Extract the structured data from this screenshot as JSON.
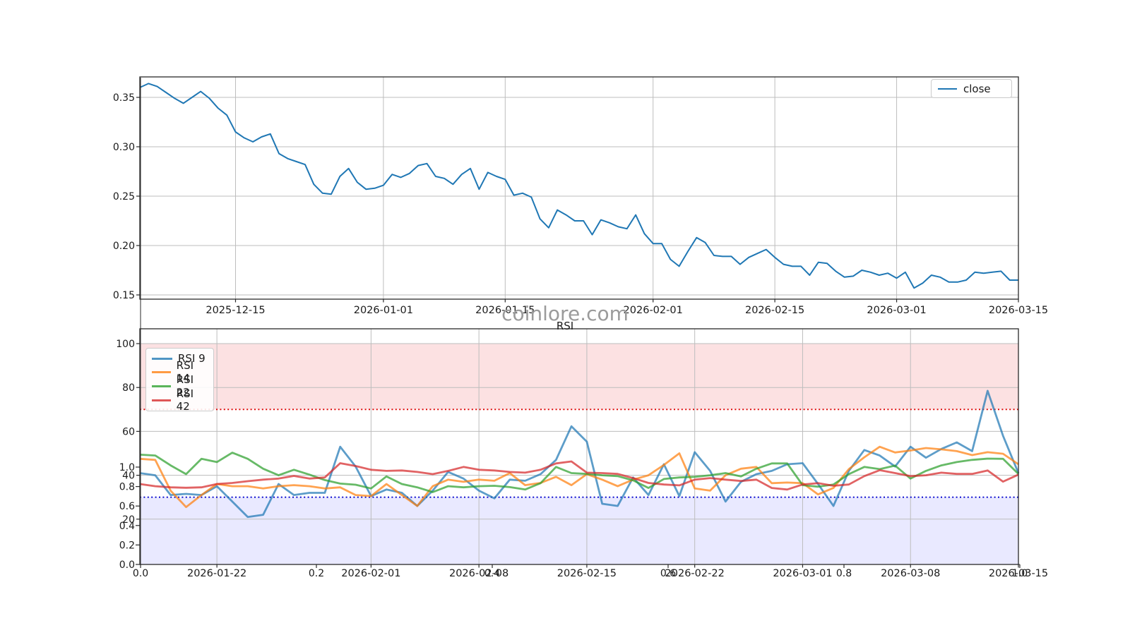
{
  "watermark": "coinlore.com",
  "rsi_title": "RSI",
  "top_chart": {
    "legend_label": "close"
  },
  "overlay_axis": {
    "x_tick_labels": [
      "0.0",
      "0.2",
      "0.4",
      "0.6",
      "0.8",
      "1.0"
    ],
    "y_tick_labels": [
      "1.0",
      "0.8",
      "0.6",
      "0.4",
      "0.2",
      "0.0"
    ]
  },
  "colors": {
    "close": "#1f77b4",
    "rsi9": "#1f77b4",
    "rsi14": "#ff7f0e",
    "rsi22": "#2ca02c",
    "rsi42": "#d62728",
    "overbought_band": "rgba(230,25,30,0.13)",
    "oversold_band": "rgba(40,40,255,0.10)",
    "overbought_line": "#dd0000",
    "oversold_line": "#0000cc",
    "grid": "#bdbdbd",
    "spine": "#2a2a2a",
    "watermark_gray": "#9b9b9b"
  },
  "chart_data": [
    {
      "type": "line",
      "title": "",
      "start_date": "2025-12-04",
      "end_date": "2026-03-15",
      "frequency": "daily",
      "legend_position": "upper right",
      "grid": true,
      "ylim": [
        0.146,
        0.371
      ],
      "x_tick_labels": [
        "2025-12-15",
        "2026-01-01",
        "2026-01-15",
        "2026-02-01",
        "2026-02-15",
        "2026-03-01",
        "2026-03-15"
      ],
      "x_tick_day_index": [
        11,
        28,
        42,
        59,
        73,
        87,
        101
      ],
      "y_tick_labels": [
        "0.35",
        "0.30",
        "0.25",
        "0.20",
        "0.15"
      ],
      "y_tick_values": [
        0.35,
        0.3,
        0.25,
        0.2,
        0.15
      ],
      "series": [
        {
          "name": "close",
          "color": "#1f77b4",
          "values": [
            0.36,
            0.364,
            0.361,
            0.355,
            0.349,
            0.344,
            0.35,
            0.356,
            0.349,
            0.339,
            0.332,
            0.315,
            0.309,
            0.305,
            0.31,
            0.313,
            0.293,
            0.288,
            0.285,
            0.282,
            0.262,
            0.253,
            0.252,
            0.27,
            0.278,
            0.264,
            0.257,
            0.258,
            0.261,
            0.272,
            0.269,
            0.273,
            0.281,
            0.283,
            0.27,
            0.268,
            0.262,
            0.272,
            0.278,
            0.257,
            0.274,
            0.27,
            0.267,
            0.251,
            0.253,
            0.249,
            0.227,
            0.218,
            0.236,
            0.231,
            0.225,
            0.225,
            0.211,
            0.226,
            0.223,
            0.219,
            0.217,
            0.231,
            0.212,
            0.202,
            0.202,
            0.186,
            0.179,
            0.194,
            0.208,
            0.203,
            0.19,
            0.189,
            0.189,
            0.181,
            0.188,
            0.192,
            0.196,
            0.188,
            0.181,
            0.179,
            0.179,
            0.17,
            0.183,
            0.182,
            0.174,
            0.168,
            0.169,
            0.175,
            0.173,
            0.17,
            0.172,
            0.167,
            0.173,
            0.157,
            0.162,
            0.17,
            0.168,
            0.163,
            0.163,
            0.165,
            0.173,
            0.172,
            0.173,
            0.174,
            0.165,
            0.165
          ]
        }
      ]
    },
    {
      "type": "line",
      "title": "RSI",
      "start_date": "2026-01-17",
      "end_date": "2026-03-15",
      "frequency": "daily",
      "legend_position": "upper left",
      "grid": true,
      "ylim": [
        0,
        107
      ],
      "x_tick_labels": [
        "2026-01-22",
        "2026-02-01",
        "2026-02-08",
        "2026-02-15",
        "2026-02-22",
        "2026-03-01",
        "2026-03-08",
        "2026-03-15"
      ],
      "x_tick_day_index": [
        5,
        15,
        22,
        29,
        36,
        43,
        50,
        57
      ],
      "y_tick_labels": [
        "100",
        "80",
        "60",
        "40",
        "20"
      ],
      "y_tick_values": [
        100,
        80,
        60,
        40,
        20
      ],
      "bands": [
        {
          "name": "overbought-band",
          "range": [
            70,
            100
          ],
          "color": "rgba(230,25,30,0.13)"
        },
        {
          "name": "oversold-band",
          "range": [
            0,
            30
          ],
          "color": "rgba(40,40,255,0.10)"
        }
      ],
      "hlines": [
        {
          "name": "overbought-threshold-line",
          "y": 70,
          "color": "#dd0000",
          "style": "dotted"
        },
        {
          "name": "oversold-threshold-line",
          "y": 30,
          "color": "#0000cc",
          "style": "dotted"
        }
      ],
      "series": [
        {
          "name": "RSI 9",
          "color": "#1f77b4",
          "values": [
            41,
            40,
            31,
            31.5,
            31,
            35,
            28,
            21,
            22,
            36,
            31,
            32,
            32,
            53,
            44,
            30.5,
            33.5,
            32,
            26,
            33,
            41.5,
            38.5,
            33,
            29.5,
            38,
            37.5,
            40.5,
            47,
            62.3,
            55.3,
            27,
            26,
            39,
            31,
            45,
            30.5,
            50.5,
            42,
            28,
            37,
            40.5,
            42,
            45,
            45.5,
            36,
            26,
            42,
            51.5,
            49,
            44,
            53,
            48,
            52,
            55,
            51,
            78.5,
            58,
            41
          ]
        },
        {
          "name": "RSI 14",
          "color": "#ff7f0e",
          "values": [
            47.5,
            47,
            33,
            25.5,
            31,
            36,
            35,
            35,
            34,
            35,
            35.5,
            35,
            34,
            34.5,
            31,
            30.5,
            36,
            31,
            26,
            35,
            38,
            37,
            38,
            37.5,
            41,
            35.5,
            36.5,
            39.3,
            35.5,
            40.5,
            38,
            35,
            38,
            40,
            44.7,
            50,
            34,
            33,
            40,
            43,
            43.8,
            36.4,
            36.7,
            36.4,
            31.3,
            34.2,
            42.8,
            48.2,
            53,
            50.4,
            51.3,
            52.4,
            51.8,
            51,
            49.2,
            50.5,
            49.8,
            45
          ]
        },
        {
          "name": "RSI 22",
          "color": "#2ca02c",
          "values": [
            49.4,
            49,
            44.5,
            40.5,
            47.5,
            46,
            50.3,
            47.5,
            43,
            40,
            42.5,
            40.3,
            37.8,
            36.2,
            35.7,
            34,
            39.5,
            36,
            34.5,
            32.3,
            35,
            34.5,
            35,
            35.2,
            34.6,
            33.5,
            36.4,
            43.8,
            41,
            40.6,
            40,
            39.6,
            37.7,
            34.2,
            38.3,
            39,
            39.3,
            40,
            41,
            39.5,
            43,
            45.4,
            45.4,
            35.5,
            34.8,
            35.8,
            40.5,
            43.8,
            42.8,
            44.4,
            38.5,
            42,
            44.5,
            46,
            47,
            47.6,
            47.5,
            40.6
          ]
        },
        {
          "name": "RSI 42",
          "color": "#d62728",
          "values": [
            36,
            35,
            34.5,
            34.3,
            34.5,
            36,
            36.5,
            37.3,
            38,
            38.5,
            39.7,
            38.5,
            39,
            45.5,
            44.2,
            42.5,
            42,
            42.2,
            41.5,
            40.5,
            42,
            43.8,
            42.5,
            42.2,
            41.5,
            41.2,
            42.5,
            45.4,
            46.3,
            41.2,
            41,
            40.6,
            38.7,
            36.5,
            35.8,
            35.4,
            38,
            38.7,
            38,
            37.4,
            38,
            34.2,
            33.5,
            35.8,
            36.4,
            35.2,
            35.8,
            39.6,
            42.3,
            41,
            39.6,
            40,
            41.2,
            40.6,
            40.6,
            42.2,
            37.1,
            40.3
          ]
        }
      ]
    }
  ]
}
